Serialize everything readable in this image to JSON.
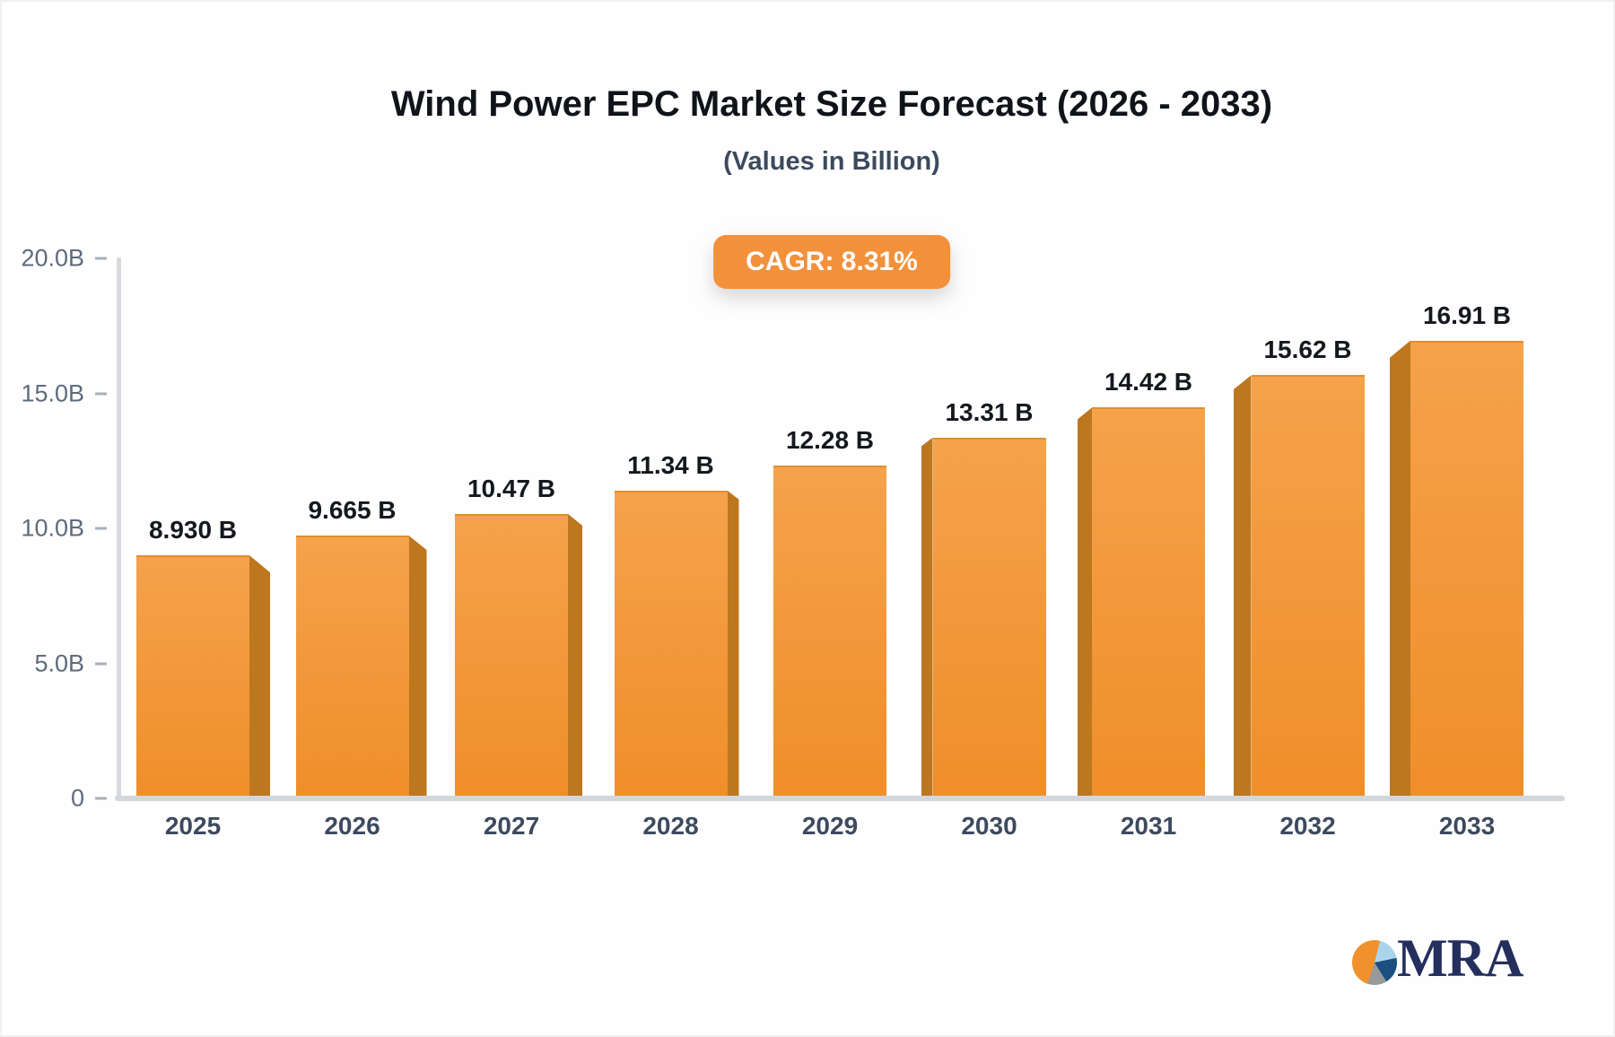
{
  "title": "Wind Power EPC Market Size Forecast (2026 - 2033)",
  "subtitle": "(Values in Billion)",
  "badge": {
    "label": "CAGR: 8.31%"
  },
  "logo": {
    "text": "MRA"
  },
  "colors": {
    "bar_face_top": "#f5a24b",
    "bar_face_bottom": "#f08e2a",
    "bar_side": "#bd771f",
    "badge_bg": "#f2913a",
    "axis_line": "#d7d9dd",
    "baseline": "#d3d6da"
  },
  "chart_data": {
    "type": "bar",
    "title": "Wind Power EPC Market Size Forecast (2026 - 2033)",
    "subtitle": "(Values in Billion)",
    "annotation": "CAGR: 8.31%",
    "categories": [
      "2025",
      "2026",
      "2027",
      "2028",
      "2029",
      "2030",
      "2031",
      "2032",
      "2033"
    ],
    "values": [
      8.93,
      9.665,
      10.47,
      11.34,
      12.28,
      13.31,
      14.42,
      15.62,
      16.91
    ],
    "value_labels": [
      "8.930 B",
      "9.665 B",
      "10.47 B",
      "11.34 B",
      "12.28 B",
      "13.31 B",
      "14.42 B",
      "15.62 B",
      "16.91 B"
    ],
    "xlabel": "",
    "ylabel": "",
    "ylim": [
      0,
      20
    ],
    "y_ticks": [
      "0",
      "5.0B",
      "10.0B",
      "15.0B",
      "20.0B"
    ],
    "grid": false,
    "legend": "none",
    "style": "3d-extruded-bars, labels above bars"
  }
}
